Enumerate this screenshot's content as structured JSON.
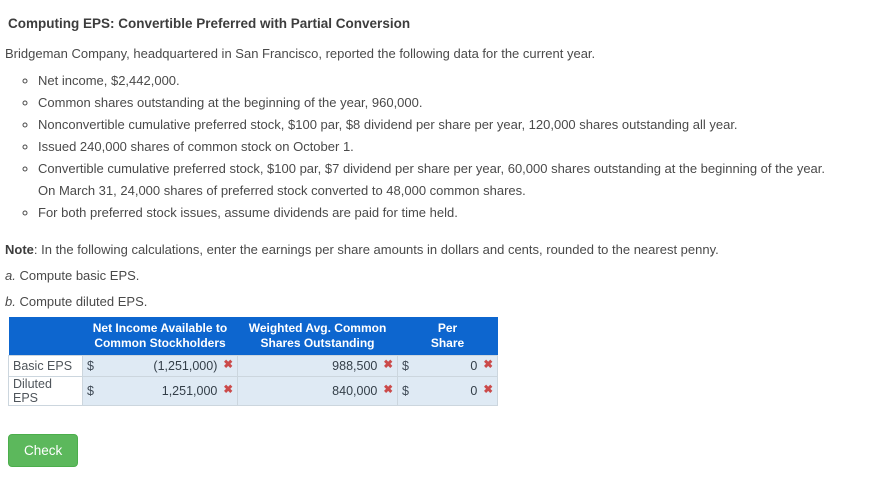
{
  "page": {
    "title": "Computing EPS: Convertible Preferred with Partial Conversion",
    "intro": "Bridgeman Company, headquartered in San Francisco, reported the following data for the current year.",
    "bullets": [
      "Net income, $2,442,000.",
      "Common shares outstanding at the beginning of the year, 960,000.",
      "Nonconvertible cumulative preferred stock, $100 par, $8 dividend per share per year, 120,000 shares outstanding all year.",
      "Issued 240,000 shares of common stock on October 1.",
      "Convertible cumulative preferred stock, $100 par, $7 dividend per share per year, 60,000 shares outstanding at the beginning of the year. On March 31, 24,000 shares of preferred stock converted to 48,000 common shares.",
      "For both preferred stock issues, assume dividends are paid for time held."
    ],
    "note": {
      "label": "Note",
      "text": ": In the following calculations, enter the earnings per share amounts in dollars and cents, rounded to the nearest penny."
    },
    "parts": [
      {
        "letter": "a.",
        "text": " Compute basic EPS."
      },
      {
        "letter": "b.",
        "text": " Compute diluted EPS."
      }
    ]
  },
  "table": {
    "columns": [
      {
        "line1": "Net Income Available to",
        "line2": "Common Stockholders"
      },
      {
        "line1": "Weighted Avg. Common",
        "line2": "Shares Outstanding"
      },
      {
        "line1": "Per",
        "line2": "Share"
      }
    ],
    "currency_symbol": "$",
    "incorrect_mark": "✖",
    "rows": [
      {
        "label": "Basic EPS",
        "net_income": "(1,251,000)",
        "shares": "988,500",
        "per_share": "0"
      },
      {
        "label": "Diluted EPS",
        "net_income": "1,251,000",
        "shares": "840,000",
        "per_share": "0"
      }
    ]
  },
  "actions": {
    "check_label": "Check"
  },
  "colors": {
    "header_blue": "#0d66cf",
    "cell_background_blue": "#dfeaf4",
    "incorrect_red": "#cb4a4a",
    "check_button_green": "#5cb85c",
    "check_button_border": "#4cae4c"
  }
}
